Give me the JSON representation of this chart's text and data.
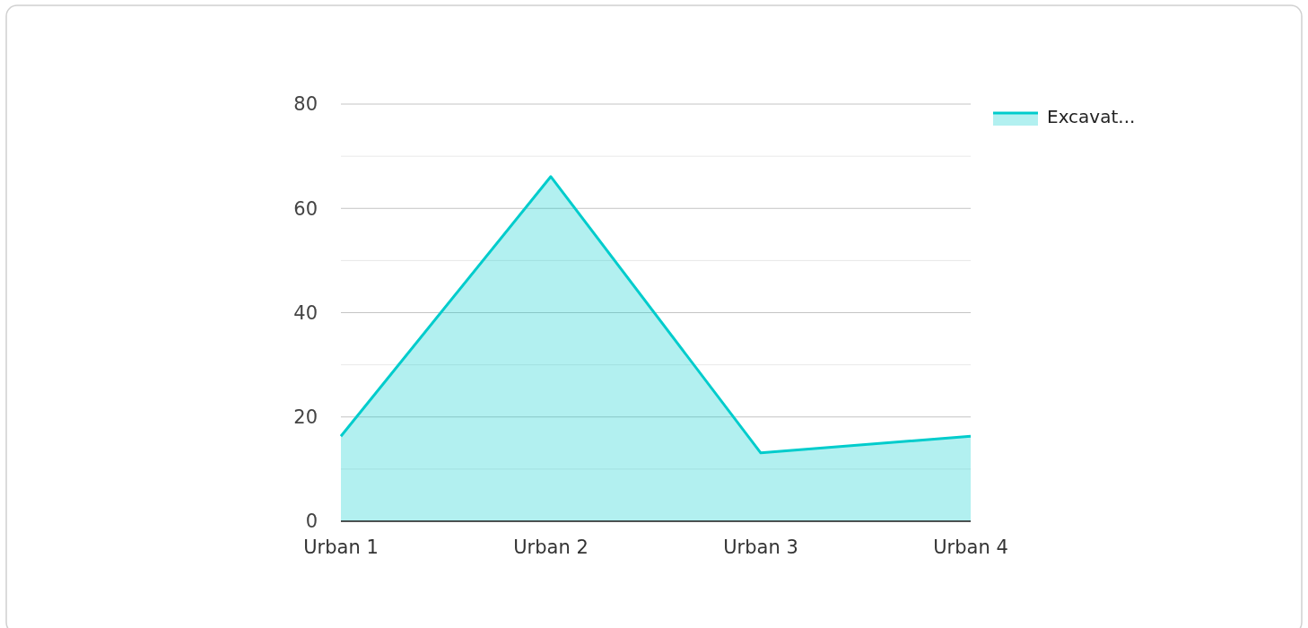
{
  "chart_data": {
    "type": "area",
    "categories": [
      "Urban 1",
      "Urban 2",
      "Urban 3",
      "Urban 4"
    ],
    "series": [
      {
        "name": "Excavat...",
        "color": "#00cccc",
        "values": [
          16.3,
          66.1,
          13.1,
          16.3
        ]
      }
    ],
    "ylim": [
      0,
      80
    ],
    "yticks": [
      0,
      {
        "value": 10,
        "label": null
      },
      20,
      {
        "value": 30,
        "label": null
      },
      40,
      {
        "value": 50,
        "label": null
      },
      60,
      {
        "value": 70,
        "label": null
      },
      80
    ],
    "grid": "y",
    "legend": "top right"
  }
}
